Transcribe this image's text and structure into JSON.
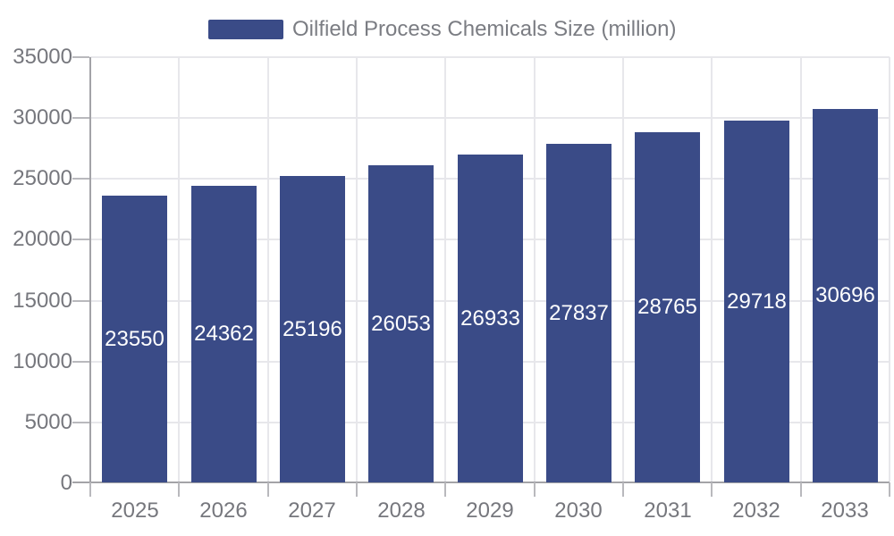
{
  "legend": {
    "label": "Oilfield Process Chemicals Size (million)"
  },
  "chart_data": {
    "type": "bar",
    "title": "",
    "xlabel": "",
    "ylabel": "",
    "categories": [
      "2025",
      "2026",
      "2027",
      "2028",
      "2029",
      "2030",
      "2031",
      "2032",
      "2033"
    ],
    "series": [
      {
        "name": "Oilfield Process Chemicals Size (million)",
        "values": [
          23550,
          24362,
          25196,
          26053,
          26933,
          27837,
          28765,
          29718,
          30696
        ]
      }
    ],
    "value_labels": [
      "23550",
      "24362",
      "25196",
      "26053",
      "26933",
      "27837",
      "28765",
      "29718",
      "30696"
    ],
    "ylim": [
      0,
      35000
    ],
    "yticks": [
      0,
      5000,
      10000,
      15000,
      20000,
      25000,
      30000,
      35000
    ],
    "grid": true,
    "legend_position": "top",
    "colors": {
      "bar": "#3A4B87",
      "bar_label": "#FFFFFF",
      "axis_text": "#76777D",
      "legend_text": "#7B7D83",
      "grid_line": "#E7E7EB",
      "axis_line": "#A3A3A7",
      "tick_line": "#B9B9BD",
      "background": "#FFFFFF"
    }
  }
}
